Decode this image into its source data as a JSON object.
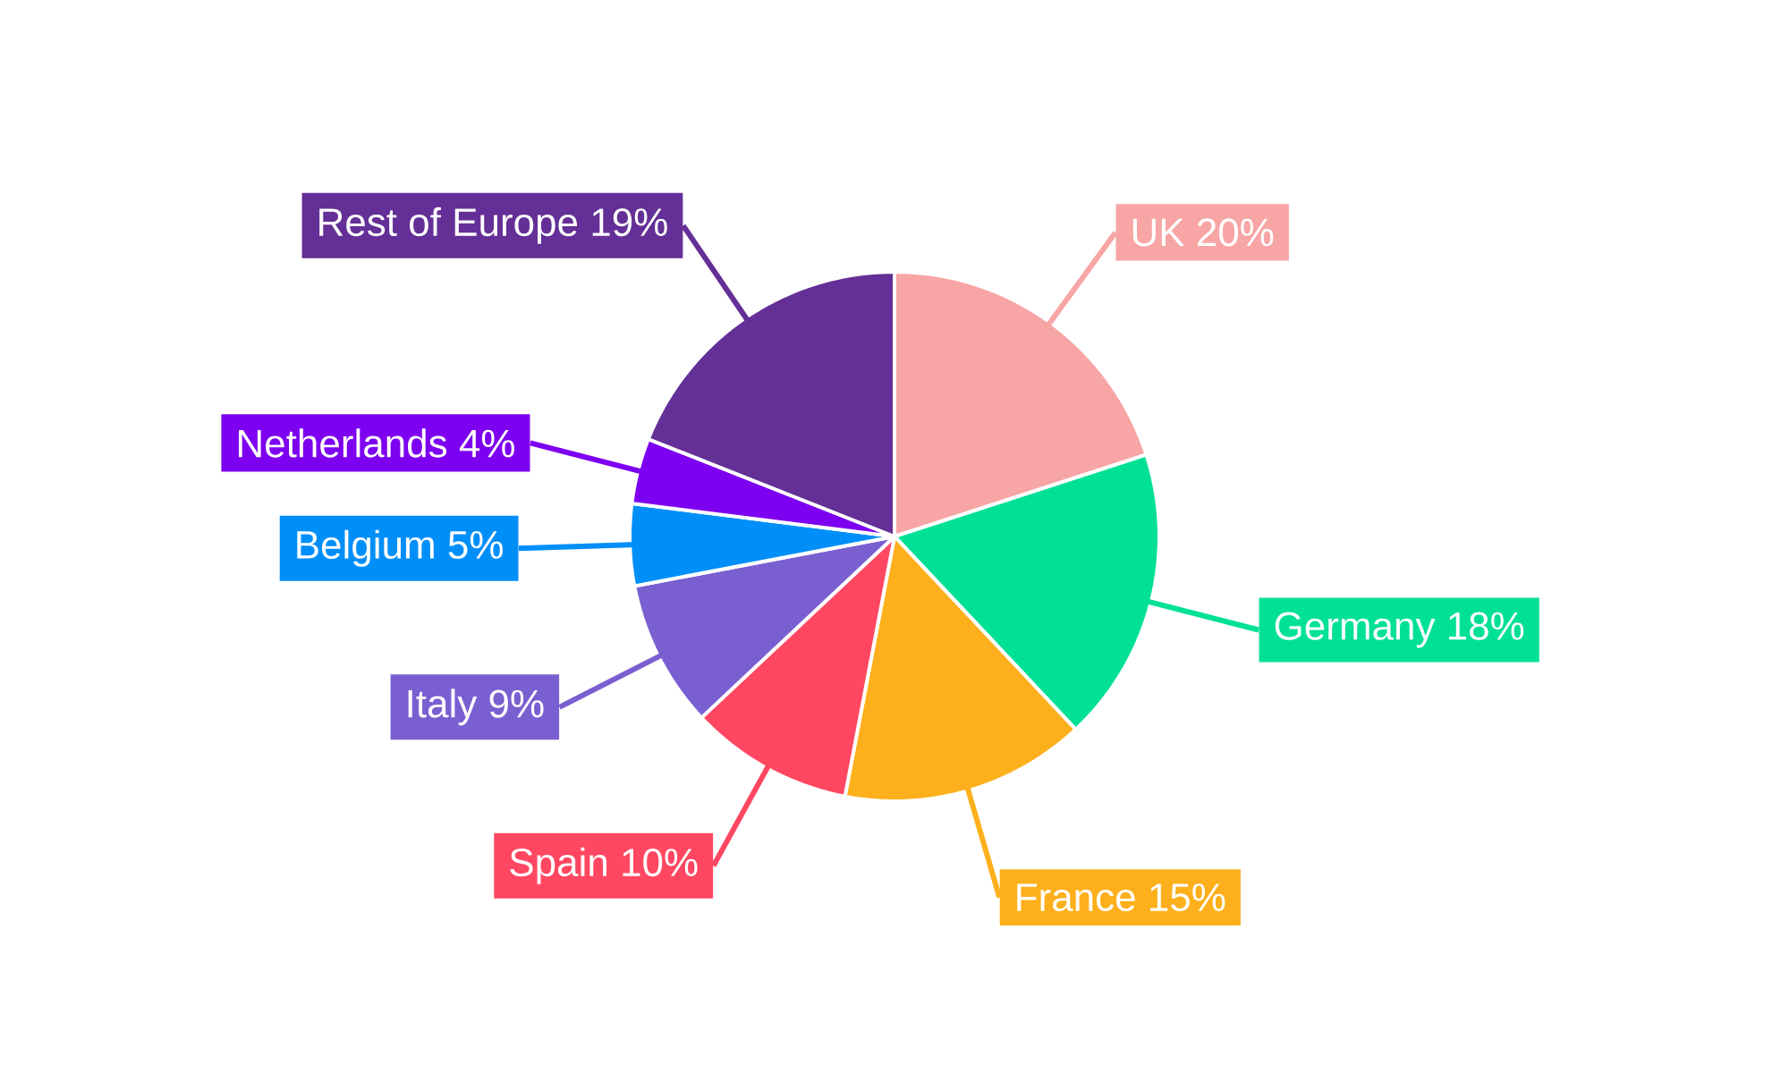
{
  "chart_data": {
    "type": "pie",
    "categories": [
      "UK",
      "Germany",
      "France",
      "Spain",
      "Italy",
      "Belgium",
      "Netherlands",
      "Rest of Europe"
    ],
    "values": [
      20,
      18,
      15,
      10,
      9,
      5,
      4,
      19
    ],
    "value_labels": [
      "20%",
      "18%",
      "15%",
      "10%",
      "9%",
      "5%",
      "4%",
      "19%"
    ],
    "colors": [
      "#f8a5a5",
      "#00e096",
      "#fdb01c",
      "#ff4762",
      "#7a5fd1",
      "#008ff9",
      "#7d00f0",
      "#642f96"
    ]
  }
}
